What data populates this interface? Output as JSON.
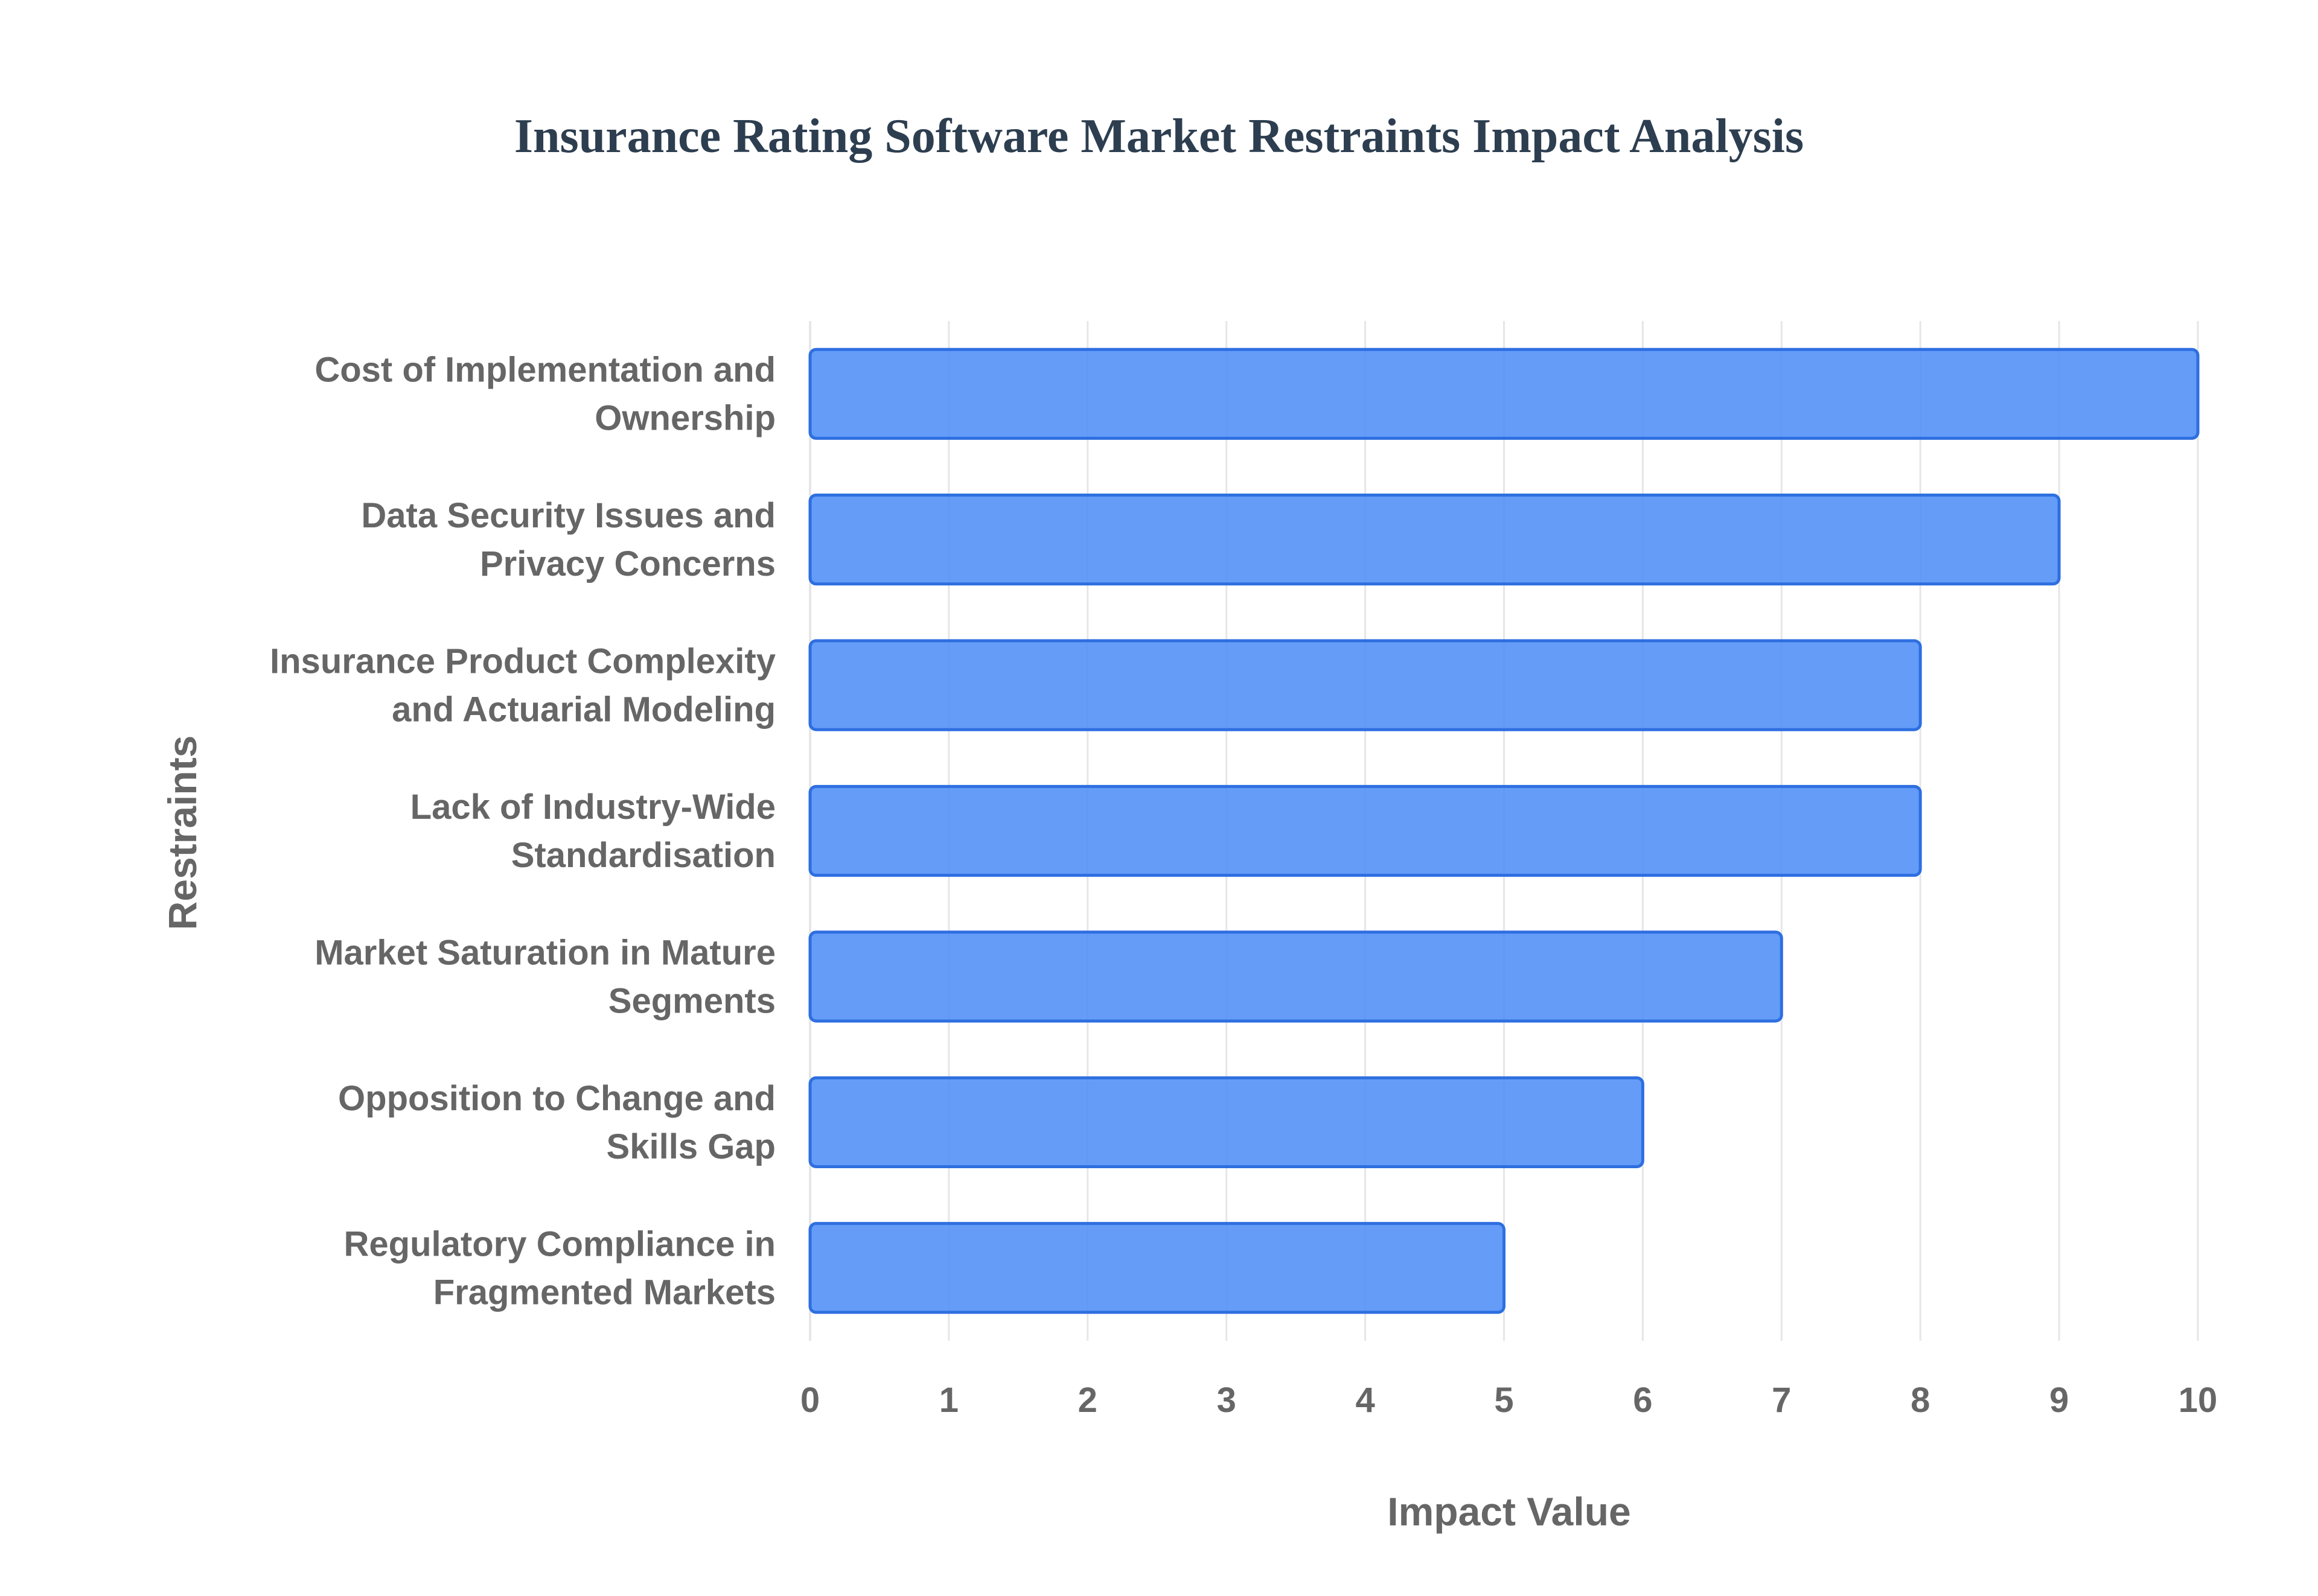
{
  "chart_data": {
    "type": "bar",
    "orientation": "horizontal",
    "title": "Insurance Rating Software Market Restraints Impact Analysis",
    "xlabel": "Impact Value",
    "ylabel": "Restraints",
    "categories": [
      [
        "Cost of Implementation and",
        "Ownership"
      ],
      [
        "Data Security Issues and",
        "Privacy Concerns"
      ],
      [
        "Insurance Product Complexity",
        "and Actuarial Modeling"
      ],
      [
        "Lack of Industry-Wide",
        "Standardisation"
      ],
      [
        "Market Saturation in Mature",
        "Segments"
      ],
      [
        "Opposition to Change and",
        "Skills Gap"
      ],
      [
        "Regulatory Compliance in",
        "Fragmented Markets"
      ]
    ],
    "values": [
      10,
      9,
      8,
      8,
      7,
      6,
      5
    ],
    "xlim": [
      0,
      10
    ],
    "xticks": [
      "0",
      "1",
      "2",
      "3",
      "4",
      "5",
      "6",
      "7",
      "8",
      "9",
      "10"
    ],
    "grid": true,
    "colors": {
      "bar_fill": "#4f8ef7",
      "bar_stroke": "#2e6fe0",
      "title": "#2d3e50",
      "text": "#666666",
      "grid": "#e6e6e6"
    }
  }
}
